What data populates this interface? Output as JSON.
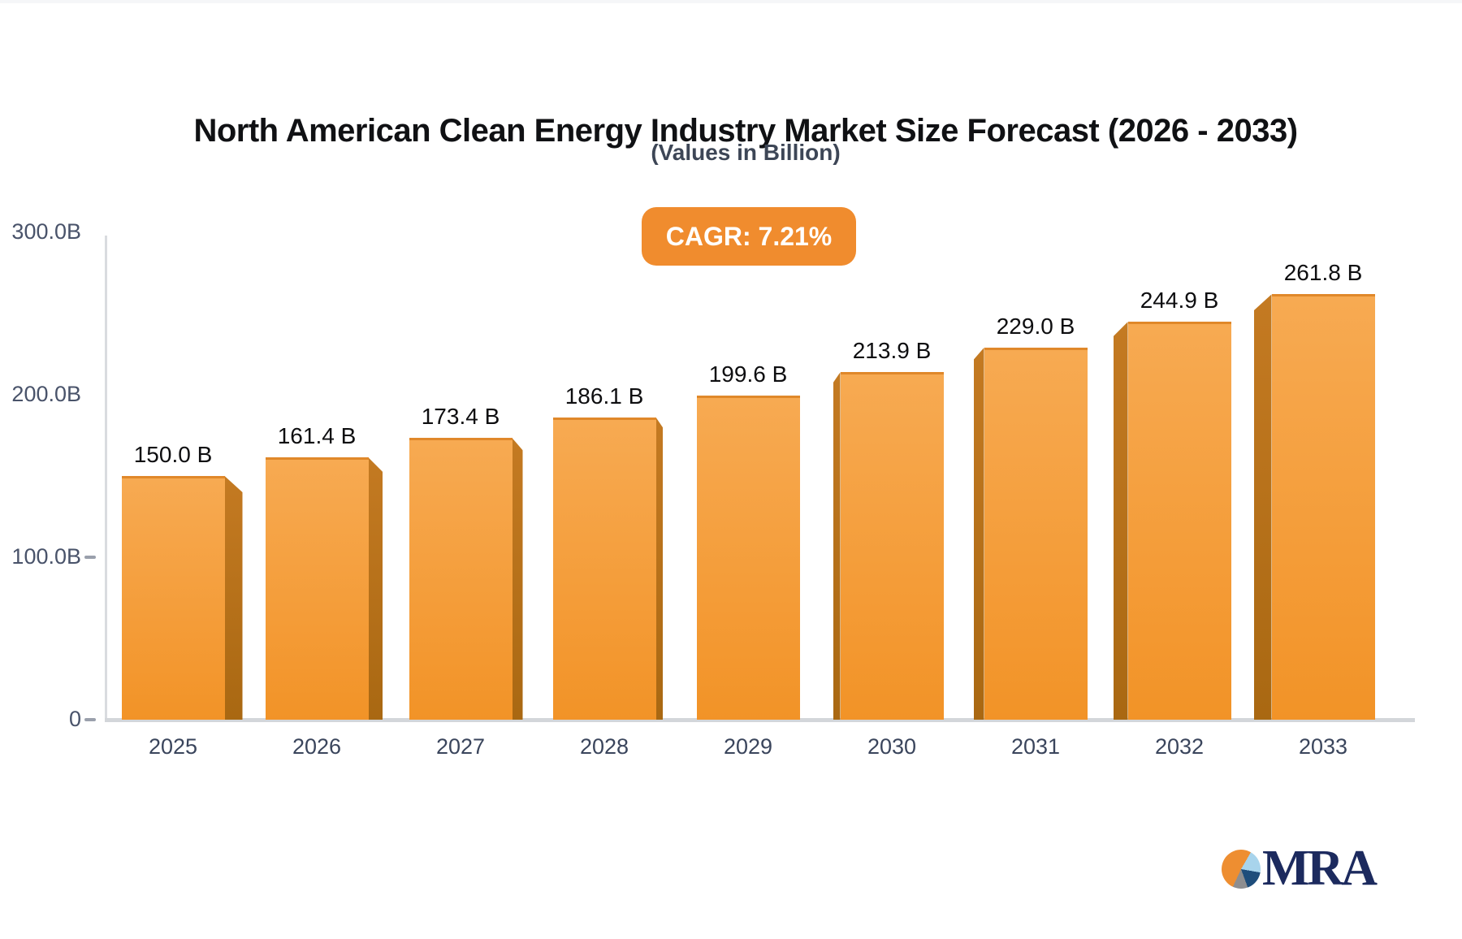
{
  "header": {
    "title": "North American Clean Energy Industry Market Size Forecast (2026 - 2033)",
    "subtitle": "(Values in Billion)"
  },
  "badge": {
    "label": "CAGR: 7.21%",
    "color": "#F08C2E"
  },
  "chart_data": {
    "type": "bar",
    "title": "North American Clean Energy Industry Market Size Forecast (2026 - 2033)",
    "subtitle": "(Values in Billion)",
    "categories": [
      "2025",
      "2026",
      "2027",
      "2028",
      "2029",
      "2030",
      "2031",
      "2032",
      "2033"
    ],
    "values": [
      150.0,
      161.4,
      173.4,
      186.1,
      199.6,
      213.9,
      229.0,
      244.9,
      261.8
    ],
    "value_labels": [
      "150.0 B",
      "161.4 B",
      "173.4 B",
      "186.1 B",
      "199.6 B",
      "213.9 B",
      "229.0 B",
      "244.9 B",
      "261.8 B"
    ],
    "unit": "Billion",
    "cagr": "7.21%",
    "xlabel": "",
    "ylabel": "",
    "ylim": [
      0,
      300
    ],
    "grid": false,
    "legend": "none",
    "yticks": [
      {
        "label": "300.0B",
        "value": 300,
        "dash": false
      },
      {
        "label": "200.0B",
        "value": 200,
        "dash": false
      },
      {
        "label": "100.0B",
        "value": 100,
        "dash": true
      },
      {
        "label": "0",
        "value": 0,
        "dash": true
      }
    ],
    "colors": {
      "bar_top": "#F7AA52",
      "bar_bottom": "#F29327",
      "bar_top_edge": "#E0882A",
      "bar_side_top": "#C47A22",
      "bar_side_bottom": "#A96812",
      "axis_line": "#D3D6DA",
      "tick_text": "#49536A",
      "value_text": "#0E0E10"
    }
  },
  "logo": {
    "text": "MRA",
    "text_color": "#1C2A5E",
    "pie_colors": {
      "orange": "#EE8E31",
      "light_blue": "#A8D4EC",
      "navy": "#1E4D7B",
      "gray": "#8E8E90"
    }
  }
}
